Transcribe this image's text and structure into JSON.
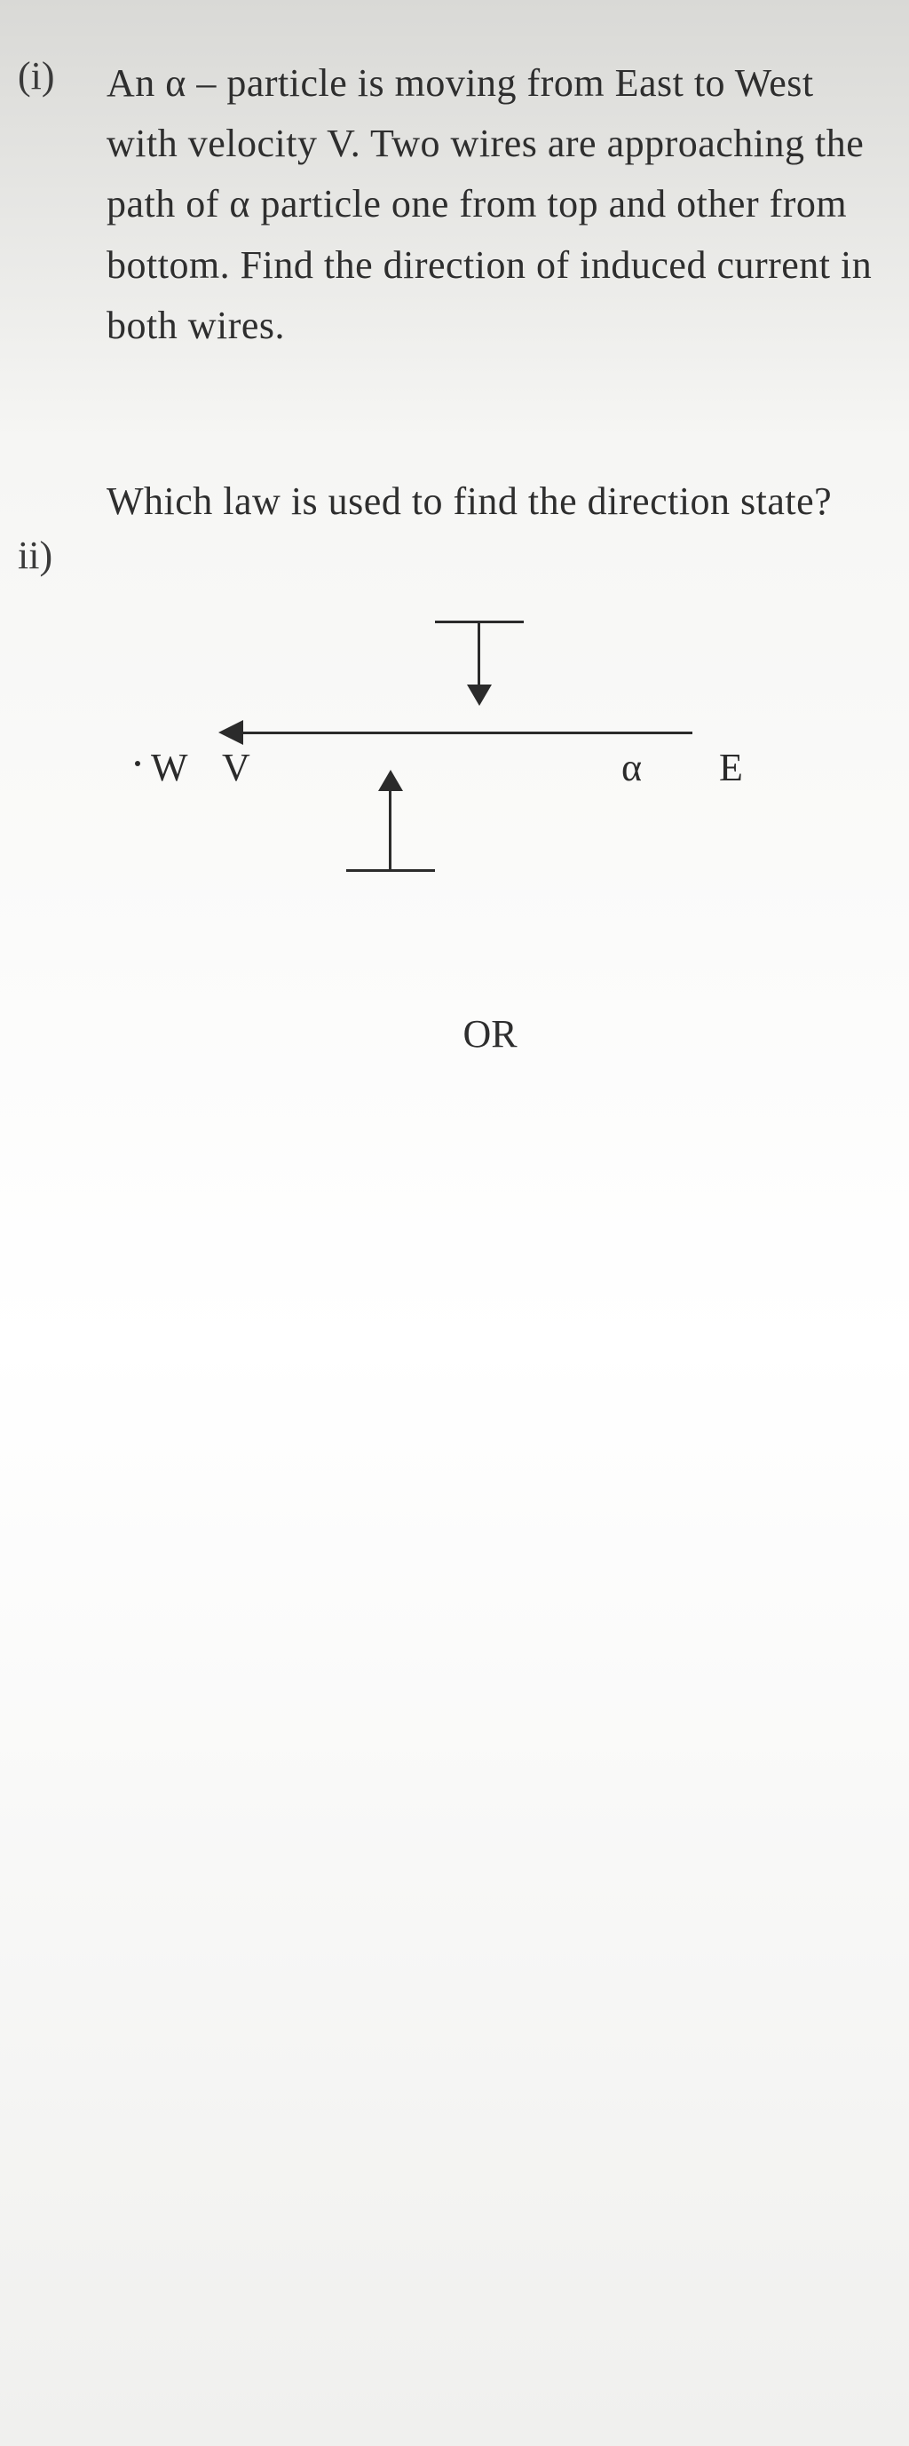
{
  "question_i": {
    "number": "(i)",
    "text": "An α – particle is moving from East to West with velocity V. Two wires are approaching the path of α particle one from top and other from bottom. Find the direction of induced current in both wires."
  },
  "question_ii": {
    "number": "ii)",
    "text": "Which law is used to find the direction state?"
  },
  "diagram": {
    "labels": {
      "W": "W",
      "V": "V",
      "alpha": "α",
      "E": "E"
    },
    "line_color": "#2b2b2b",
    "text_color": "#2b2b2b",
    "fontsize": 44
  },
  "or_label": "OR",
  "page_bg": "#f5f5f3"
}
